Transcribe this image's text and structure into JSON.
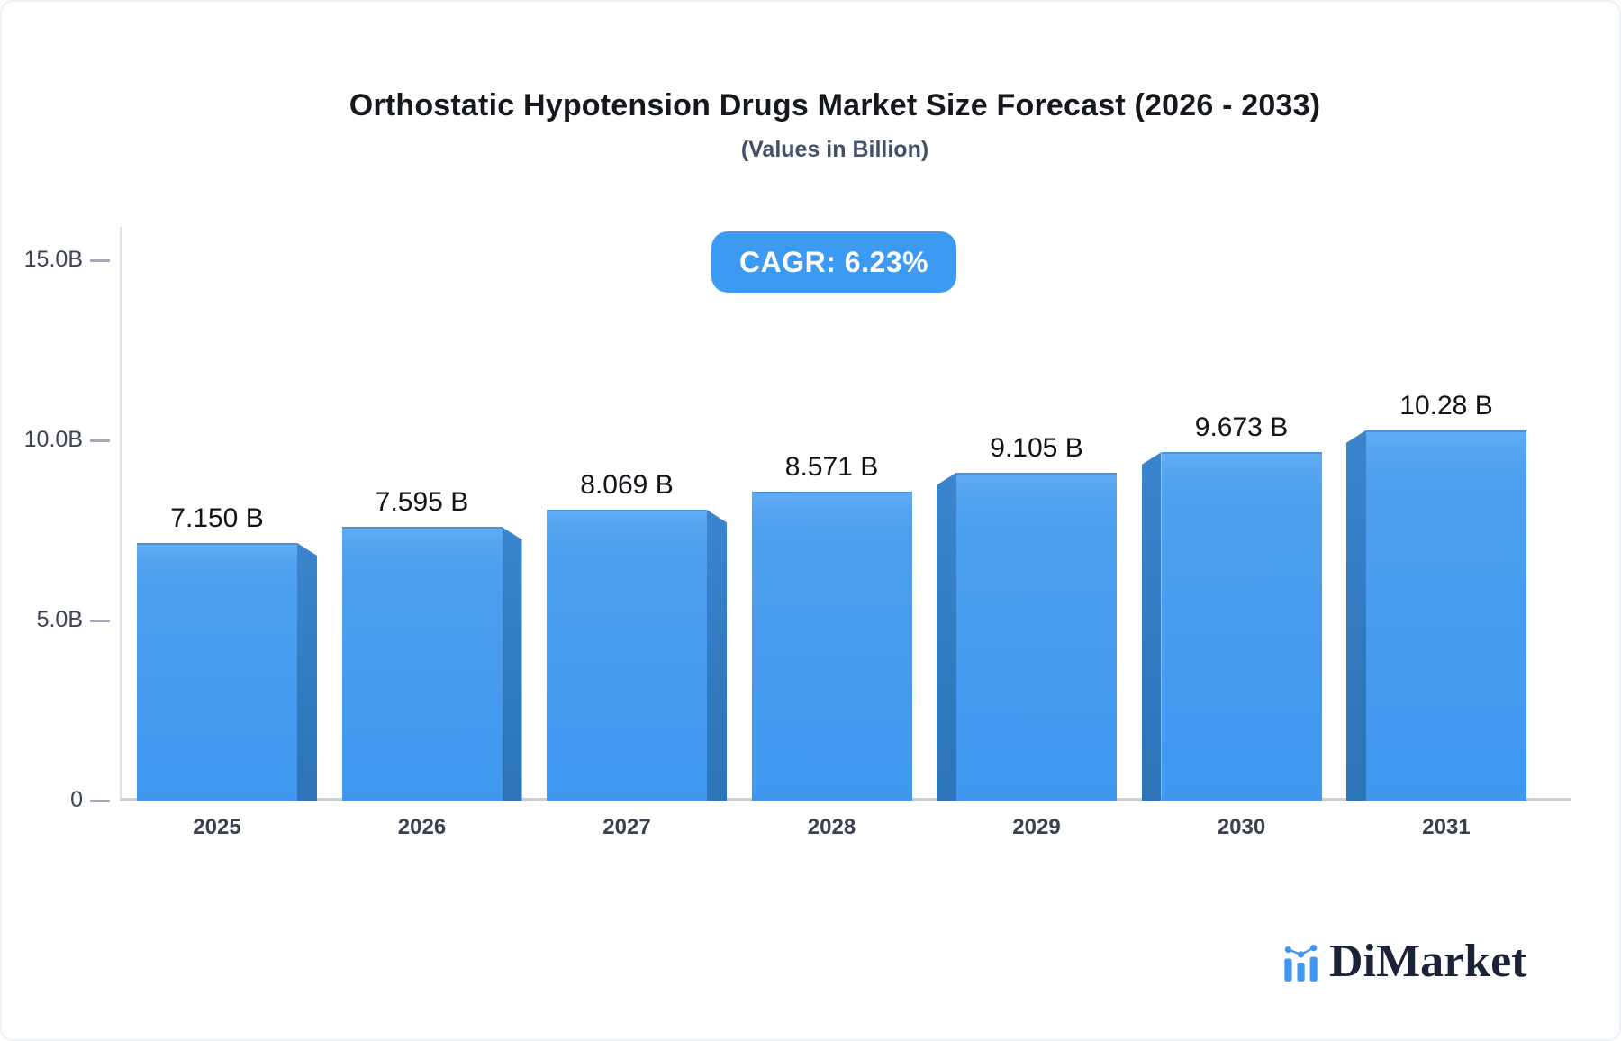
{
  "title": "Orthostatic Hypotension Drugs Market Size Forecast (2026 - 2033)",
  "subtitle": "(Values in Billion)",
  "cagr_badge": {
    "label": "CAGR: 6.23%",
    "background_color": "#3d9af2",
    "text_color": "#ffffff"
  },
  "chart_data": {
    "type": "bar",
    "title": "Orthostatic Hypotension Drugs Market Size Forecast (2026 - 2033)",
    "subtitle": "(Values in Billion)",
    "categories": [
      "2025",
      "2026",
      "2027",
      "2028",
      "2029",
      "2030",
      "2031"
    ],
    "values": [
      7.15,
      7.595,
      8.069,
      8.571,
      9.105,
      9.673,
      10.28
    ],
    "value_labels": [
      "7.150 B",
      "7.595 B",
      "8.069 B",
      "8.571 B",
      "9.105 B",
      "9.673 B",
      "10.28 B"
    ],
    "xlabel": "",
    "ylabel": "",
    "ylim": [
      0,
      15
    ],
    "yticks": [
      {
        "value": 0,
        "label": "0"
      },
      {
        "value": 5,
        "label": "5.0B"
      },
      {
        "value": 10,
        "label": "10.0B"
      },
      {
        "value": 15,
        "label": "15.0B"
      }
    ],
    "grid": false,
    "legend": false,
    "style": "pseudo-3d bars, perspective toward center",
    "bar_color": "#429bf0",
    "bar_side_color": "#2f7bc2"
  },
  "branding": {
    "logo_text": "DiMarket",
    "logo_icon": "mini-bar-chart-icon",
    "accent_color": "#3f97f5"
  }
}
